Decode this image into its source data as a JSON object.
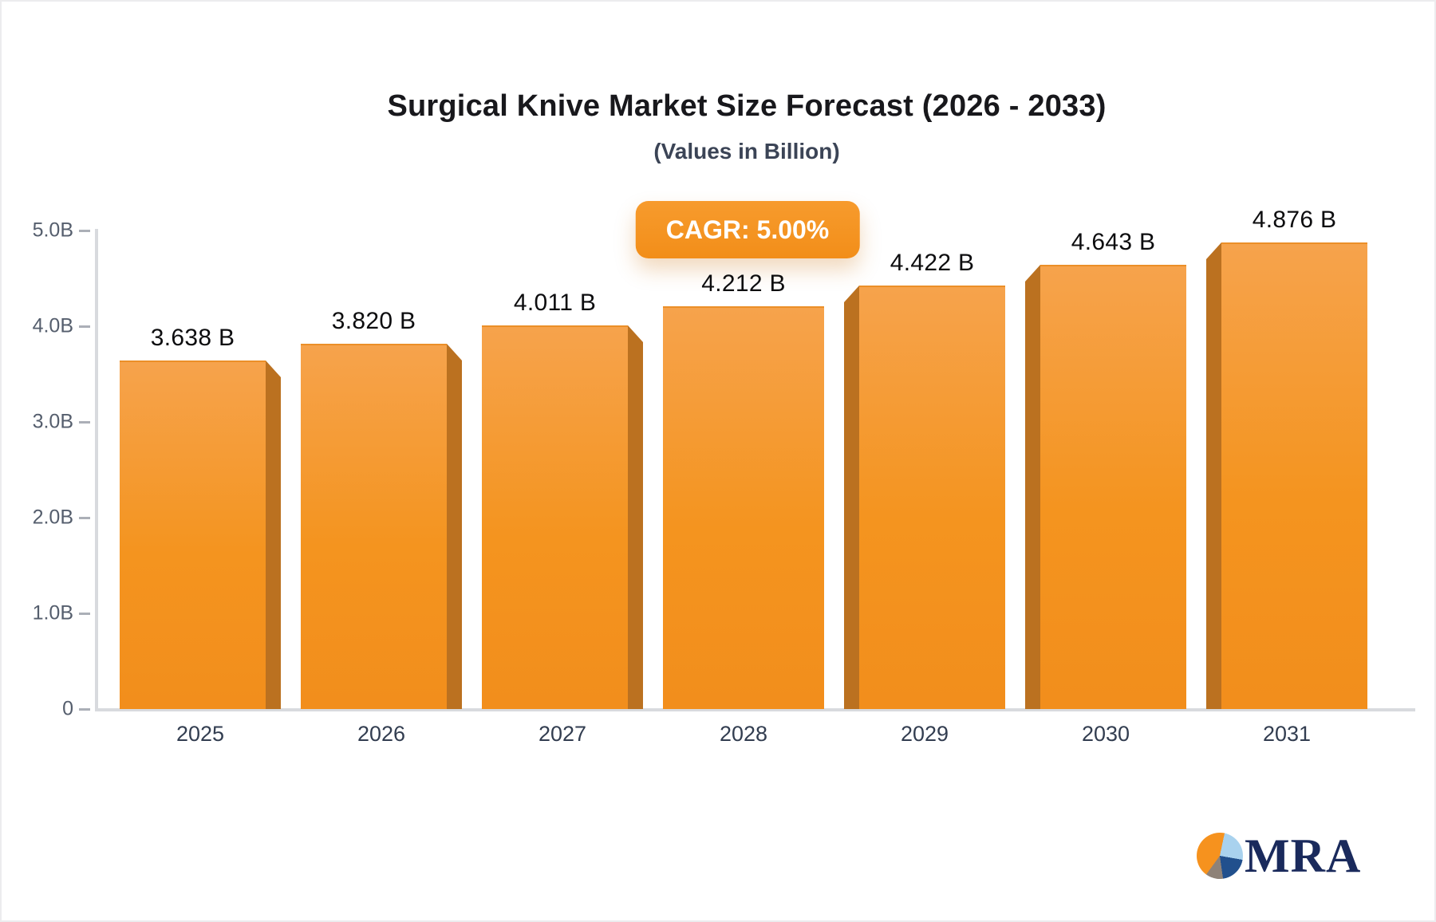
{
  "title": "Surgical Knive Market Size Forecast (2026 - 2033)",
  "subtitle": "(Values in Billion)",
  "badge": {
    "label": "CAGR: 5.00%"
  },
  "chart_data": {
    "type": "bar",
    "title": "Surgical Knive Market Size Forecast (2026 - 2033)",
    "subtitle": "(Values in Billion)",
    "cagr": "CAGR: 5.00%",
    "categories": [
      "2025",
      "2026",
      "2027",
      "2028",
      "2029",
      "2030",
      "2031"
    ],
    "values": [
      3.638,
      3.82,
      4.011,
      4.212,
      4.422,
      4.643,
      4.876
    ],
    "value_labels": [
      "3.638 B",
      "3.820 B",
      "4.011 B",
      "4.212 B",
      "4.422 B",
      "4.643 B",
      "4.876 B"
    ],
    "xlabel": "",
    "ylabel": "",
    "ylim": [
      0,
      5
    ],
    "y_ticks": [
      {
        "value": 5,
        "label": "5.0B"
      },
      {
        "value": 4,
        "label": "4.0B"
      },
      {
        "value": 3,
        "label": "3.0B"
      },
      {
        "value": 2,
        "label": "2.0B"
      },
      {
        "value": 1,
        "label": "1.0B"
      },
      {
        "value": 0,
        "label": "0"
      }
    ],
    "grid": "off",
    "legend": "none",
    "bar_color_top": "#f6a34c",
    "bar_color_bottom": "#f28e1c",
    "bar_side_color": "#bb7120",
    "badge_color": "#f6921e"
  },
  "logo": {
    "text": "MRA",
    "icon": "pie-chart",
    "text_color": "#1a2a5c"
  }
}
